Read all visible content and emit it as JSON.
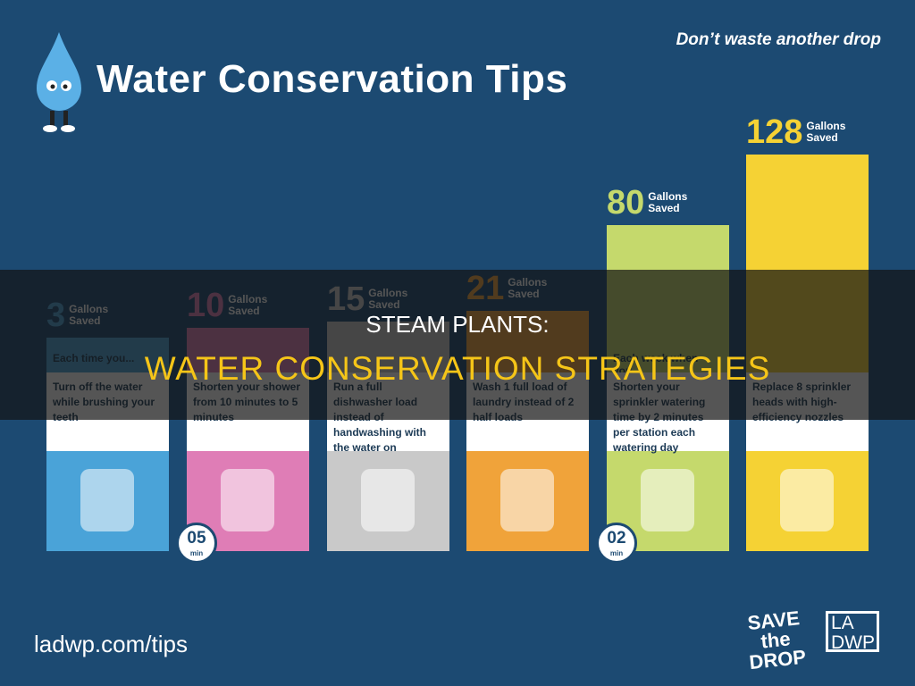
{
  "header": {
    "title": "Water Conservation Tips",
    "tagline": "Don’t waste another drop"
  },
  "columns": [
    {
      "value": "3",
      "unit": "Gallons Saved",
      "heading": "Each time you...",
      "description": "Turn off the water while brushing your teeth",
      "color": "#4aa3d8",
      "top": 378
    },
    {
      "value": "10",
      "unit": "Gallons Saved",
      "heading": "",
      "description": "Shorten your shower from 10 minutes to 5 minutes",
      "color": "#df7db6",
      "top": 367,
      "timer": "05",
      "timer_unit": "min"
    },
    {
      "value": "15",
      "unit": "Gallons Saved",
      "heading": "",
      "description": "Run a full dishwasher load instead of handwashing with the water on",
      "color": "#c9c9c9",
      "top": 360
    },
    {
      "value": "21",
      "unit": "Gallons Saved",
      "heading": "",
      "description": "Wash 1 full load of laundry instead of 2 half loads",
      "color": "#f0a33a",
      "top": 348
    },
    {
      "value": "80",
      "unit": "Gallons Saved",
      "heading": "Each week when you...",
      "description": "Shorten your sprinkler watering time by 2 minutes per station each watering day",
      "color": "#c5d96c",
      "top": 252,
      "timer": "02",
      "timer_unit": "min"
    },
    {
      "value": "128",
      "unit": "Gallons Saved",
      "heading": "",
      "description": "Replace 8 sprinkler heads with high-efficiency nozzles",
      "color": "#f5d234",
      "top": 173
    }
  ],
  "banner": {
    "line1": "STEAM PLANTS:",
    "line2": "WATER CONSERVATION STRATEGIES"
  },
  "footer": {
    "url": "ladwp.com/tips",
    "logo1": "SAVE the DROP",
    "logo2": "LA DWP"
  }
}
